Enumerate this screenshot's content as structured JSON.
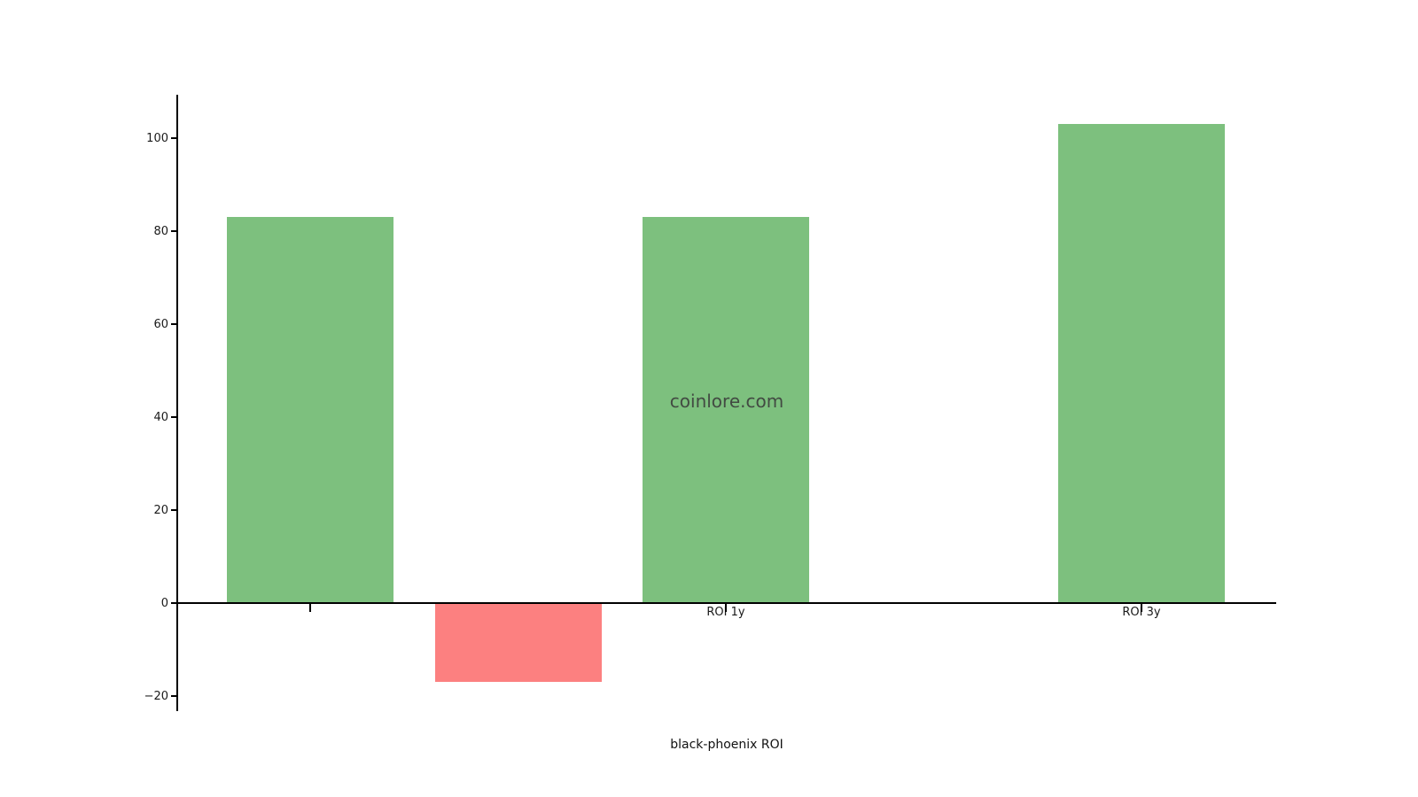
{
  "page": {
    "background": "#ffffff"
  },
  "chart_data": {
    "type": "bar",
    "title": "black-phoenix ROI",
    "watermark": "coinlore.com",
    "categories": [
      "",
      "",
      "ROI 1y",
      "",
      "ROI 3y"
    ],
    "values": [
      83,
      -17,
      83,
      null,
      103
    ],
    "bar_colors": [
      "#7dc07e",
      "#fc8080",
      "#7dc07e",
      null,
      "#7dc07e"
    ],
    "x_ticks_visible": [
      true,
      false,
      true,
      false,
      true
    ],
    "yticks": [
      100,
      80,
      60,
      40,
      20,
      0,
      -20
    ],
    "ylim": [
      -23.3,
      109.3
    ],
    "xlabel": "",
    "ylabel": "",
    "grid": false,
    "legend": false,
    "positive_color": "#7dc07e",
    "negative_color": "#fc8080",
    "axis_color": "#000000"
  }
}
